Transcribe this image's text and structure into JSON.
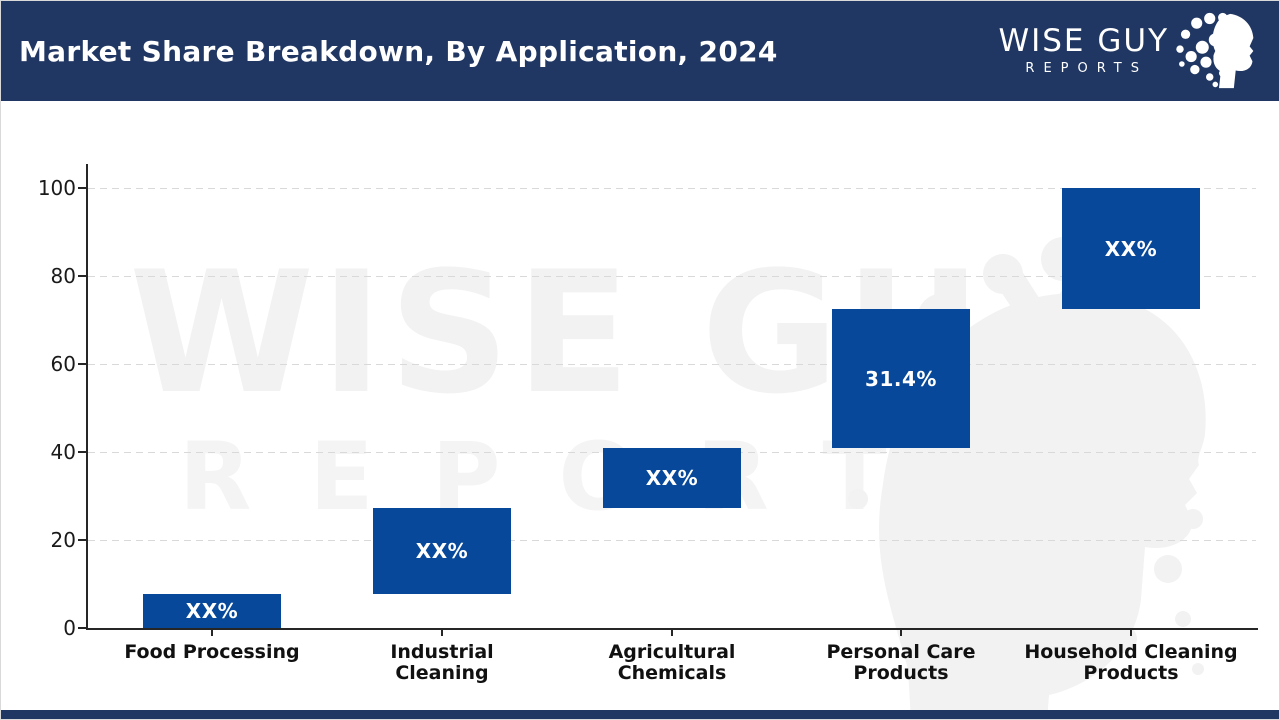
{
  "header": {
    "title": "Market Share Breakdown, By Application, 2024",
    "logo": {
      "brand": "WISE GUY",
      "sub": "REPORTS",
      "face_icon": "dotted-head-profile"
    }
  },
  "watermark": {
    "line1": "WISE GUY",
    "line2": "REPORTS",
    "graphic": "dotted-head-profile"
  },
  "colors": {
    "header_navy": "#213763",
    "footer_navy": "#213763",
    "bar_blue": "#07489a",
    "grid_gray": "#d9d9d9",
    "axis_dark": "#262626",
    "watermark_gray": "#f2f2f2",
    "label_white": "#ffffff",
    "text_black": "#111111"
  },
  "chart_data": {
    "type": "bar",
    "subtype": "floating-waterfall",
    "title": "Market Share Breakdown, By Application, 2024",
    "categories": [
      "Food Processing",
      "Industrial Cleaning",
      "Agricultural Chemicals",
      "Personal Care Products",
      "Household Cleaning Products"
    ],
    "category_lines": [
      [
        "Food Processing"
      ],
      [
        "Industrial",
        "Cleaning"
      ],
      [
        "Agricultural",
        "Chemicals"
      ],
      [
        "Personal Care",
        "Products"
      ],
      [
        "Household Cleaning",
        "Products"
      ]
    ],
    "segments": [
      {
        "category": "Food Processing",
        "start": 0,
        "end": 7.7,
        "value": 7.7,
        "label": "XX%"
      },
      {
        "category": "Industrial Cleaning",
        "start": 7.7,
        "end": 27.3,
        "value": 19.6,
        "label": "XX%"
      },
      {
        "category": "Agricultural Chemicals",
        "start": 27.3,
        "end": 41.0,
        "value": 13.7,
        "label": "XX%"
      },
      {
        "category": "Personal Care Products",
        "start": 41.0,
        "end": 72.4,
        "value": 31.4,
        "label": "31.4%"
      },
      {
        "category": "Household Cleaning Products",
        "start": 72.4,
        "end": 100.0,
        "value": 27.6,
        "label": "XX%"
      }
    ],
    "xlabel": "",
    "ylabel": "",
    "ylim": [
      0,
      100
    ],
    "yticks": [
      0,
      20,
      40,
      60,
      80,
      100
    ],
    "grid": "horizontal-dashed",
    "legend": "none",
    "bar_color": "#07489a"
  }
}
